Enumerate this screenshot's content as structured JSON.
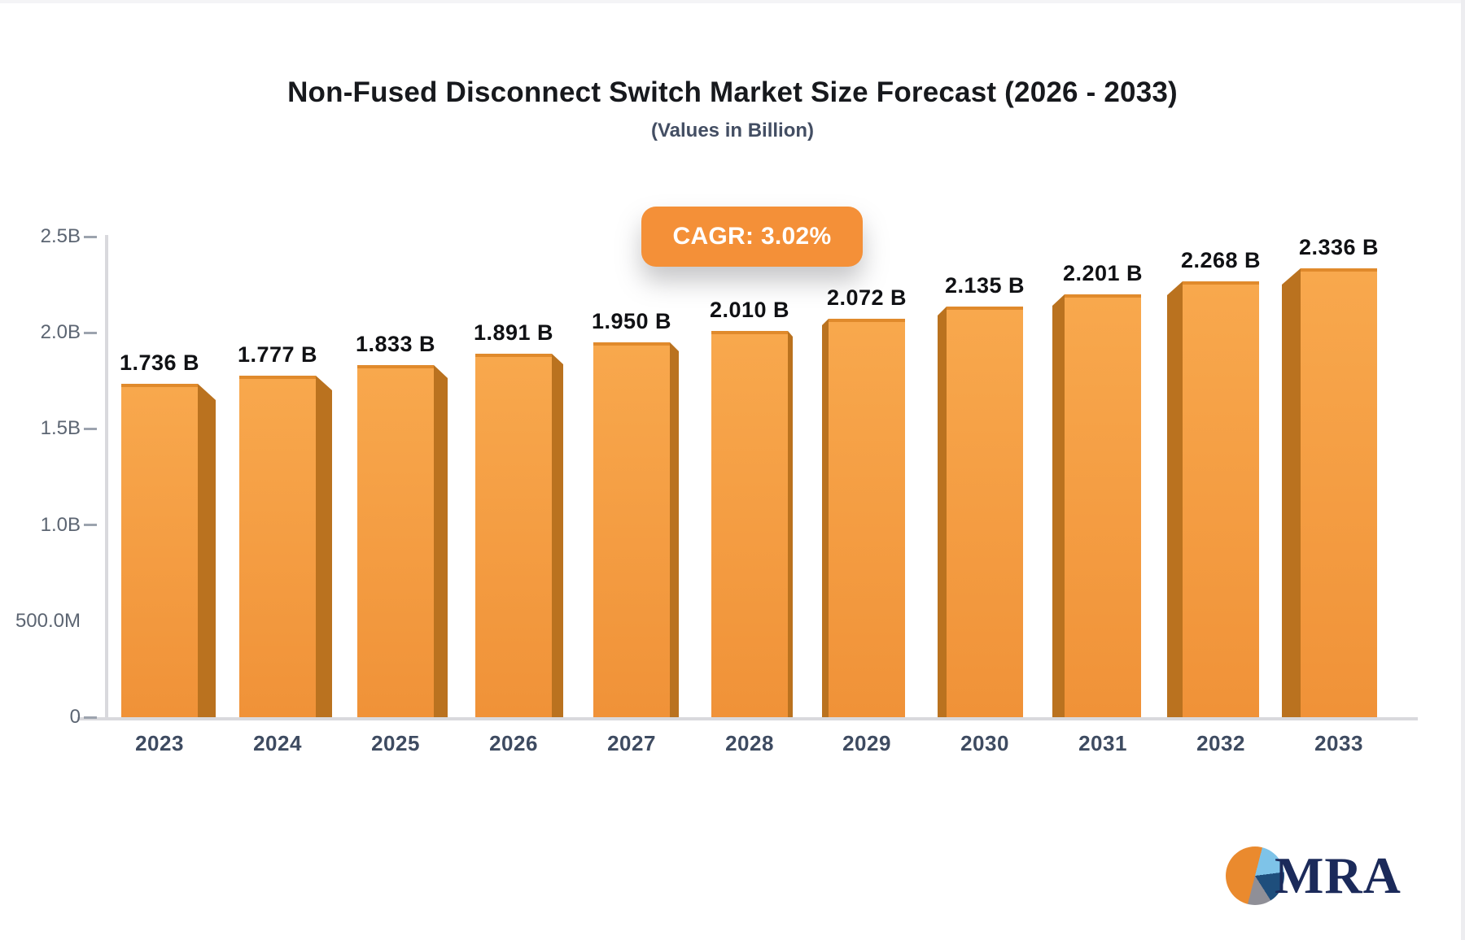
{
  "header": {
    "title": "Non-Fused Disconnect Switch Market Size Forecast (2026 - 2033)",
    "subtitle": "(Values in Billion)"
  },
  "badge": {
    "label": "CAGR: 3.02%"
  },
  "chart_data": {
    "type": "bar",
    "title": "Non-Fused Disconnect Switch Market Size Forecast (2026 - 2033)",
    "subtitle": "(Values in Billion)",
    "cagr": "3.02%",
    "categories": [
      "2023",
      "2024",
      "2025",
      "2026",
      "2027",
      "2028",
      "2029",
      "2030",
      "2031",
      "2032",
      "2033"
    ],
    "values": [
      1.736,
      1.777,
      1.833,
      1.891,
      1.95,
      2.01,
      2.072,
      2.135,
      2.201,
      2.268,
      2.336
    ],
    "value_labels": [
      "1.736 B",
      "1.777 B",
      "1.833 B",
      "1.891 B",
      "1.950 B",
      "2.010 B",
      "2.072 B",
      "2.135 B",
      "2.201 B",
      "2.268 B",
      "2.336 B"
    ],
    "xlabel": "",
    "ylabel": "",
    "ylim": [
      0,
      2.5
    ],
    "y_ticks": [
      {
        "label": "2.5B",
        "value": 2.5,
        "dash": true
      },
      {
        "label": "2.0B",
        "value": 2.0,
        "dash": true
      },
      {
        "label": "1.5B",
        "value": 1.5,
        "dash": true
      },
      {
        "label": "1.0B",
        "value": 1.0,
        "dash": true
      },
      {
        "label": "500.0M",
        "value": 0.5,
        "dash": false
      },
      {
        "label": "0",
        "value": 0,
        "dash": true
      }
    ],
    "legend": "none",
    "grid": "off",
    "bar_style": "3d-extruded",
    "colors": {
      "title_text": "#17191d",
      "subtitle_text": "#434e63",
      "badge_bg": "#f49038",
      "bar_front_top": "#f8a84d",
      "bar_front_bottom": "#f09238",
      "bar_side": "#ba721f",
      "bar_top_edge": "#e08a2c",
      "axis_line": "#d9d9dd",
      "tick_text": "#5c6572",
      "year_text": "#3e4b61",
      "value_text": "#101114",
      "logo_navy": "#1b2a5a",
      "logo_orange": "#ea8a2e",
      "logo_lightblue": "#7ec3e8",
      "logo_darkblue": "#1e4e7c",
      "logo_gray": "#8f8f97"
    }
  },
  "logo": {
    "text": "MRA"
  }
}
